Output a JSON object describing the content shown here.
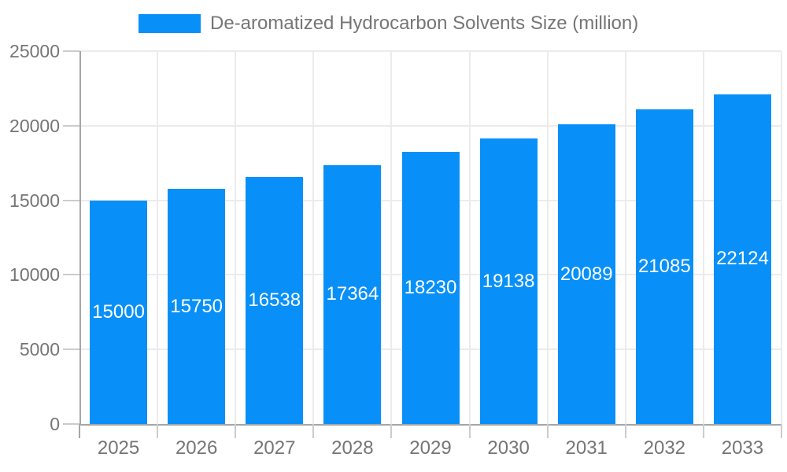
{
  "legend": {
    "label": "De-aromatized Hydrocarbon Solvents Size (million)",
    "swatch_color": "#0890f8"
  },
  "chart_data": {
    "type": "bar",
    "title": "De-aromatized Hydrocarbon Solvents Size (million)",
    "categories": [
      "2025",
      "2026",
      "2027",
      "2028",
      "2029",
      "2030",
      "2031",
      "2032",
      "2033"
    ],
    "values": [
      15000,
      15750,
      16538,
      17364,
      18230,
      19138,
      20089,
      21085,
      22124
    ],
    "value_labels": [
      "15000",
      "15750",
      "16538",
      "17364",
      "18230",
      "19138",
      "20089",
      "21085",
      "22124"
    ],
    "xlabel": "",
    "ylabel": "",
    "ylim": [
      0,
      25000
    ],
    "yticks": [
      0,
      5000,
      10000,
      15000,
      20000,
      25000
    ],
    "ytick_labels": [
      "0",
      "5000",
      "10000",
      "15000",
      "20000",
      "25000"
    ],
    "grid": "both",
    "legend_position": "top",
    "bar_label_position": "inside-center",
    "colors": {
      "bar": "#0890f8",
      "bar_label_text": "#ffffff",
      "axis_line": "#a6a6a6",
      "tick": "#cccccc",
      "gridline": "#ebebeb",
      "axis_label_text": "#757575",
      "legend_text": "#757575",
      "background": "#ffffff"
    }
  }
}
